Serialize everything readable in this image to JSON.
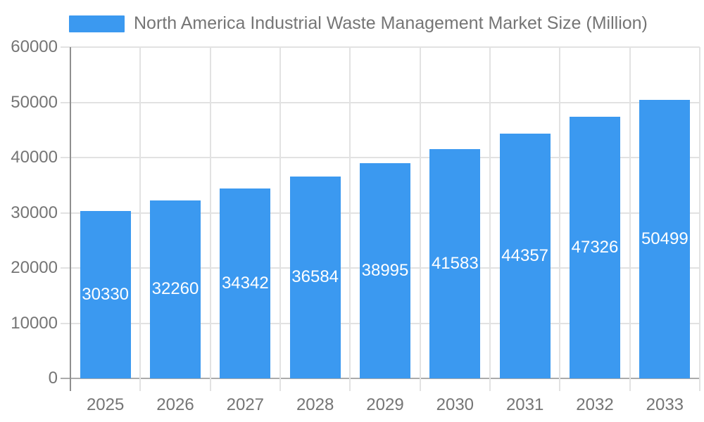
{
  "legend": {
    "label": "North America Industrial Waste Management Market Size (Million)"
  },
  "chart_data": {
    "type": "bar",
    "title": "North America Industrial Waste Management Market Size (Million)",
    "categories": [
      "2025",
      "2026",
      "2027",
      "2028",
      "2029",
      "2030",
      "2031",
      "2032",
      "2033"
    ],
    "values": [
      30330,
      32260,
      34342,
      36584,
      38995,
      41583,
      44357,
      47326,
      50499
    ],
    "series": [
      {
        "name": "North America Industrial Waste Management Market Size (Million)",
        "values": [
          30330,
          32260,
          34342,
          36584,
          38995,
          41583,
          44357,
          47326,
          50499
        ]
      }
    ],
    "xlabel": "",
    "ylabel": "",
    "ylim": [
      0,
      60000
    ],
    "yticks": [
      0,
      10000,
      20000,
      30000,
      40000,
      50000,
      60000
    ],
    "grid": true,
    "legend_position": "top-left",
    "data_labels": "inside-center",
    "colors": {
      "bar": "#3b99f0",
      "bar_label": "#ffffff",
      "axis_text": "#757575",
      "gridline": "#e2e2e2",
      "axis_line": "#8f8f8f",
      "baseline": "#ababab",
      "background": "#ffffff"
    }
  }
}
